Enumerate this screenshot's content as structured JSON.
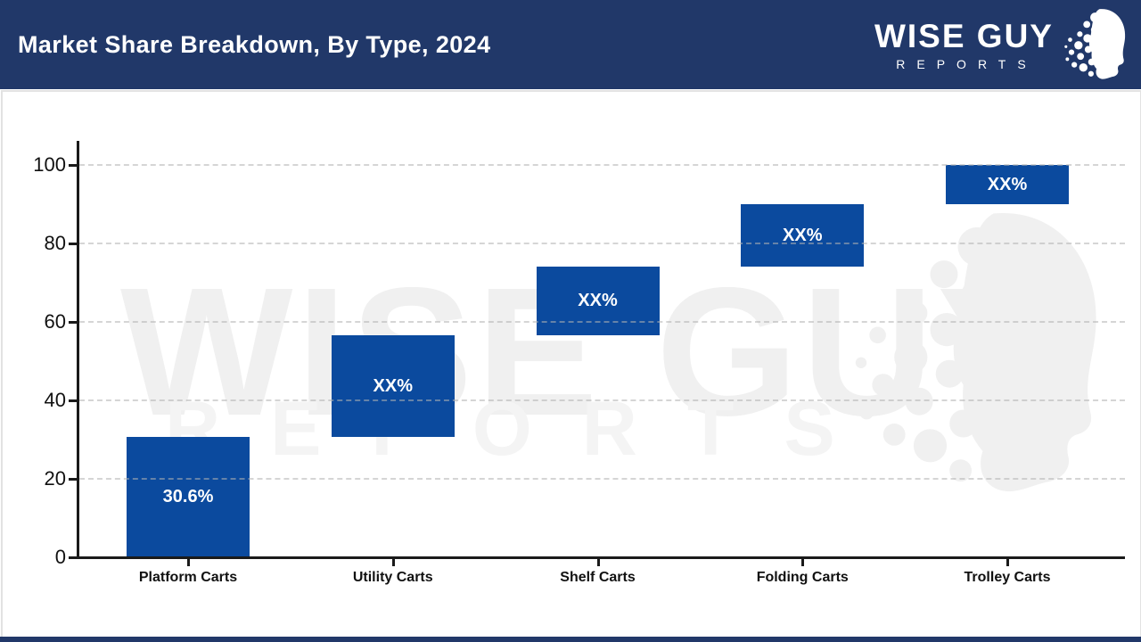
{
  "header": {
    "title": "Market Share Breakdown, By Type, 2024",
    "bg_color": "#213869",
    "logo": {
      "line1": "WISE GUY",
      "line2": "REPORTS"
    }
  },
  "watermark": {
    "line1": "WISE GUY",
    "line2": "REPORTS"
  },
  "chart_data": {
    "type": "bar",
    "subtype": "waterfall",
    "title": "Market Share Breakdown, By Type, 2024",
    "categories": [
      "Platform Carts",
      "Utility Carts",
      "Shelf Carts",
      "Folding Carts",
      "Trolley Carts"
    ],
    "segments": [
      {
        "category": "Platform Carts",
        "start": 0,
        "end": 30.6,
        "label": "30.6%"
      },
      {
        "category": "Utility Carts",
        "start": 30.6,
        "end": 56.6,
        "label": "XX%"
      },
      {
        "category": "Shelf Carts",
        "start": 56.6,
        "end": 74,
        "label": "XX%"
      },
      {
        "category": "Folding Carts",
        "start": 74,
        "end": 90,
        "label": "XX%"
      },
      {
        "category": "Trolley Carts",
        "start": 90,
        "end": 100,
        "label": "XX%"
      }
    ],
    "ylim": [
      0,
      100
    ],
    "yticks": [
      0,
      20,
      40,
      60,
      80,
      100
    ],
    "xlabel": "",
    "ylabel": "",
    "grid": "dashed-horizontal",
    "legend": "none",
    "bar_color": "#0B4A9E",
    "axis_color": "#1a1a1a",
    "grid_color": "#b2b2b2",
    "bar_label_color": "#ffffff"
  }
}
